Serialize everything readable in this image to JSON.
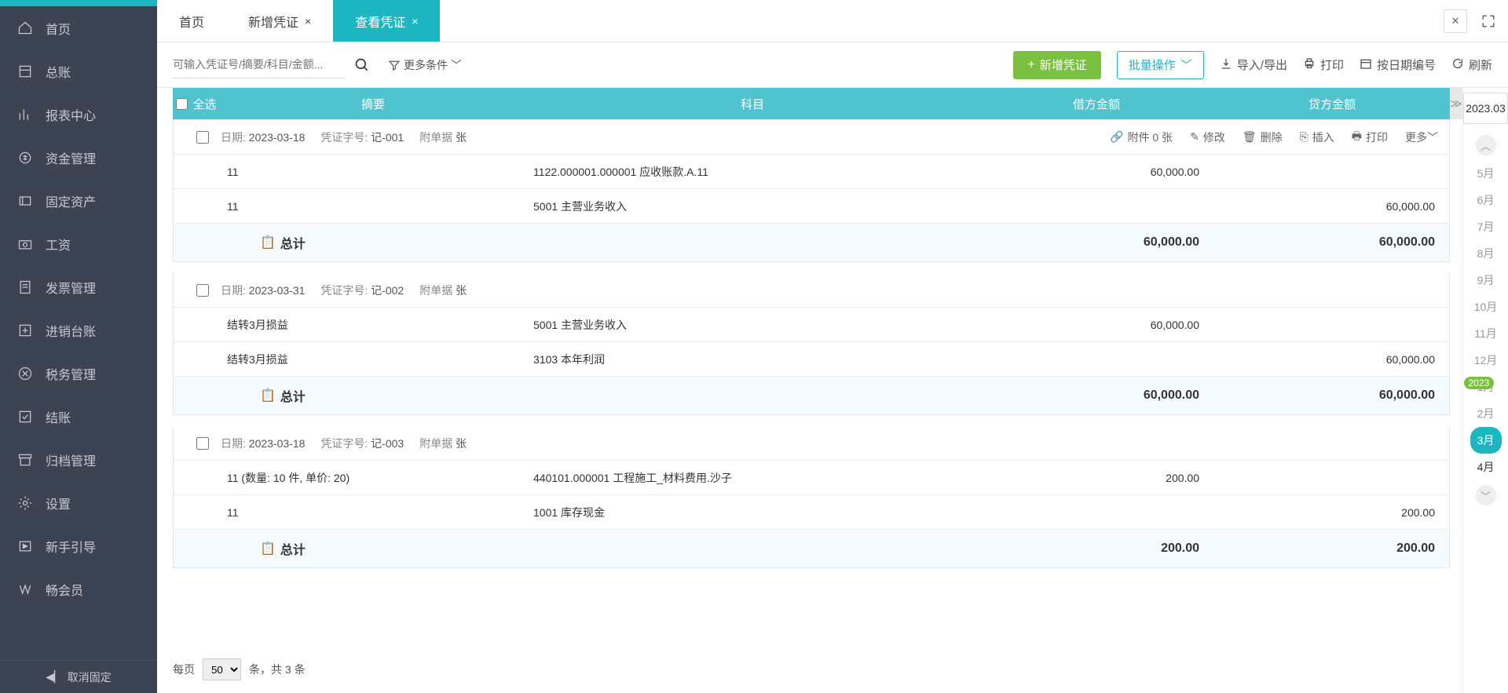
{
  "sidebar": {
    "items": [
      {
        "label": "首页",
        "icon": "home"
      },
      {
        "label": "总账",
        "icon": "ledger"
      },
      {
        "label": "报表中心",
        "icon": "report"
      },
      {
        "label": "资金管理",
        "icon": "fund"
      },
      {
        "label": "固定资产",
        "icon": "asset"
      },
      {
        "label": "工资",
        "icon": "salary"
      },
      {
        "label": "发票管理",
        "icon": "invoice"
      },
      {
        "label": "进销台账",
        "icon": "stock"
      },
      {
        "label": "税务管理",
        "icon": "tax"
      },
      {
        "label": "结账",
        "icon": "close"
      },
      {
        "label": "归档管理",
        "icon": "archive"
      },
      {
        "label": "设置",
        "icon": "settings"
      },
      {
        "label": "新手引导",
        "icon": "guide"
      },
      {
        "label": "畅会员",
        "icon": "vip"
      }
    ],
    "footer": "取消固定"
  },
  "tabs": {
    "items": [
      {
        "label": "首页",
        "closable": false,
        "active": false
      },
      {
        "label": "新增凭证",
        "closable": true,
        "active": false
      },
      {
        "label": "查看凭证",
        "closable": true,
        "active": true
      }
    ]
  },
  "toolbar": {
    "search_placeholder": "可输入凭证号/摘要/科目/金额...",
    "more_conditions": "更多条件",
    "new_voucher": "新增凭证",
    "batch_ops": "批量操作",
    "import_export": "导入/导出",
    "print": "打印",
    "renumber": "按日期编号",
    "refresh": "刷新"
  },
  "thead": {
    "select_all": "全选",
    "summary": "摘要",
    "subject": "科目",
    "debit": "借方金额",
    "credit": "贷方金额"
  },
  "voucher_labels": {
    "date": "日期:",
    "number": "凭证字号:",
    "attachment_prefix": "附单据",
    "attachment_suffix": "张",
    "attachments": "附件 0 张",
    "edit": "修改",
    "delete": "删除",
    "insert": "插入",
    "print": "打印",
    "more": "更多",
    "total": "总计"
  },
  "vouchers": [
    {
      "date": "2023-03-18",
      "number": "记-001",
      "has_actions": true,
      "attach_label": "附单据",
      "rows": [
        {
          "summary": "11",
          "subject": "1122.000001.000001  应收账款.A.11",
          "debit": "60,000.00",
          "credit": ""
        },
        {
          "summary": "11",
          "subject": "5001 主营业务收入",
          "debit": "",
          "credit": "60,000.00"
        }
      ],
      "total_debit": "60,000.00",
      "total_credit": "60,000.00"
    },
    {
      "date": "2023-03-31",
      "number": "记-002",
      "has_actions": false,
      "attach_label": "附单据",
      "rows": [
        {
          "summary": "结转3月损益",
          "subject": "5001 主营业务收入",
          "debit": "60,000.00",
          "credit": ""
        },
        {
          "summary": "结转3月损益",
          "subject": "3103 本年利润",
          "debit": "",
          "credit": "60,000.00"
        }
      ],
      "total_debit": "60,000.00",
      "total_credit": "60,000.00"
    },
    {
      "date": "2023-03-18",
      "number": "记-003",
      "has_actions": false,
      "attach_label": "附单据",
      "rows": [
        {
          "summary": "11 (数量: 10 件, 单价: 20)",
          "subject": "440101.000001  工程施工_材料费用.沙子",
          "debit": "200.00",
          "credit": ""
        },
        {
          "summary": "11",
          "subject": "1001 库存现金",
          "debit": "",
          "credit": "200.00"
        }
      ],
      "total_debit": "200.00",
      "total_credit": "200.00"
    }
  ],
  "pagination": {
    "per_page_label": "每页",
    "per_page_value": "50",
    "total_text": "条，共 3 条"
  },
  "monthbar": {
    "current": "2023.03",
    "year_badge": "2023",
    "months": [
      {
        "label": "5月",
        "state": "past"
      },
      {
        "label": "6月",
        "state": "past"
      },
      {
        "label": "7月",
        "state": "past"
      },
      {
        "label": "8月",
        "state": "past"
      },
      {
        "label": "9月",
        "state": "past"
      },
      {
        "label": "10月",
        "state": "past"
      },
      {
        "label": "11月",
        "state": "past"
      },
      {
        "label": "12月",
        "state": "past"
      },
      {
        "label": "1月",
        "state": "past"
      },
      {
        "label": "2月",
        "state": "past"
      },
      {
        "label": "3月",
        "state": "active"
      },
      {
        "label": "4月",
        "state": "future"
      }
    ]
  }
}
